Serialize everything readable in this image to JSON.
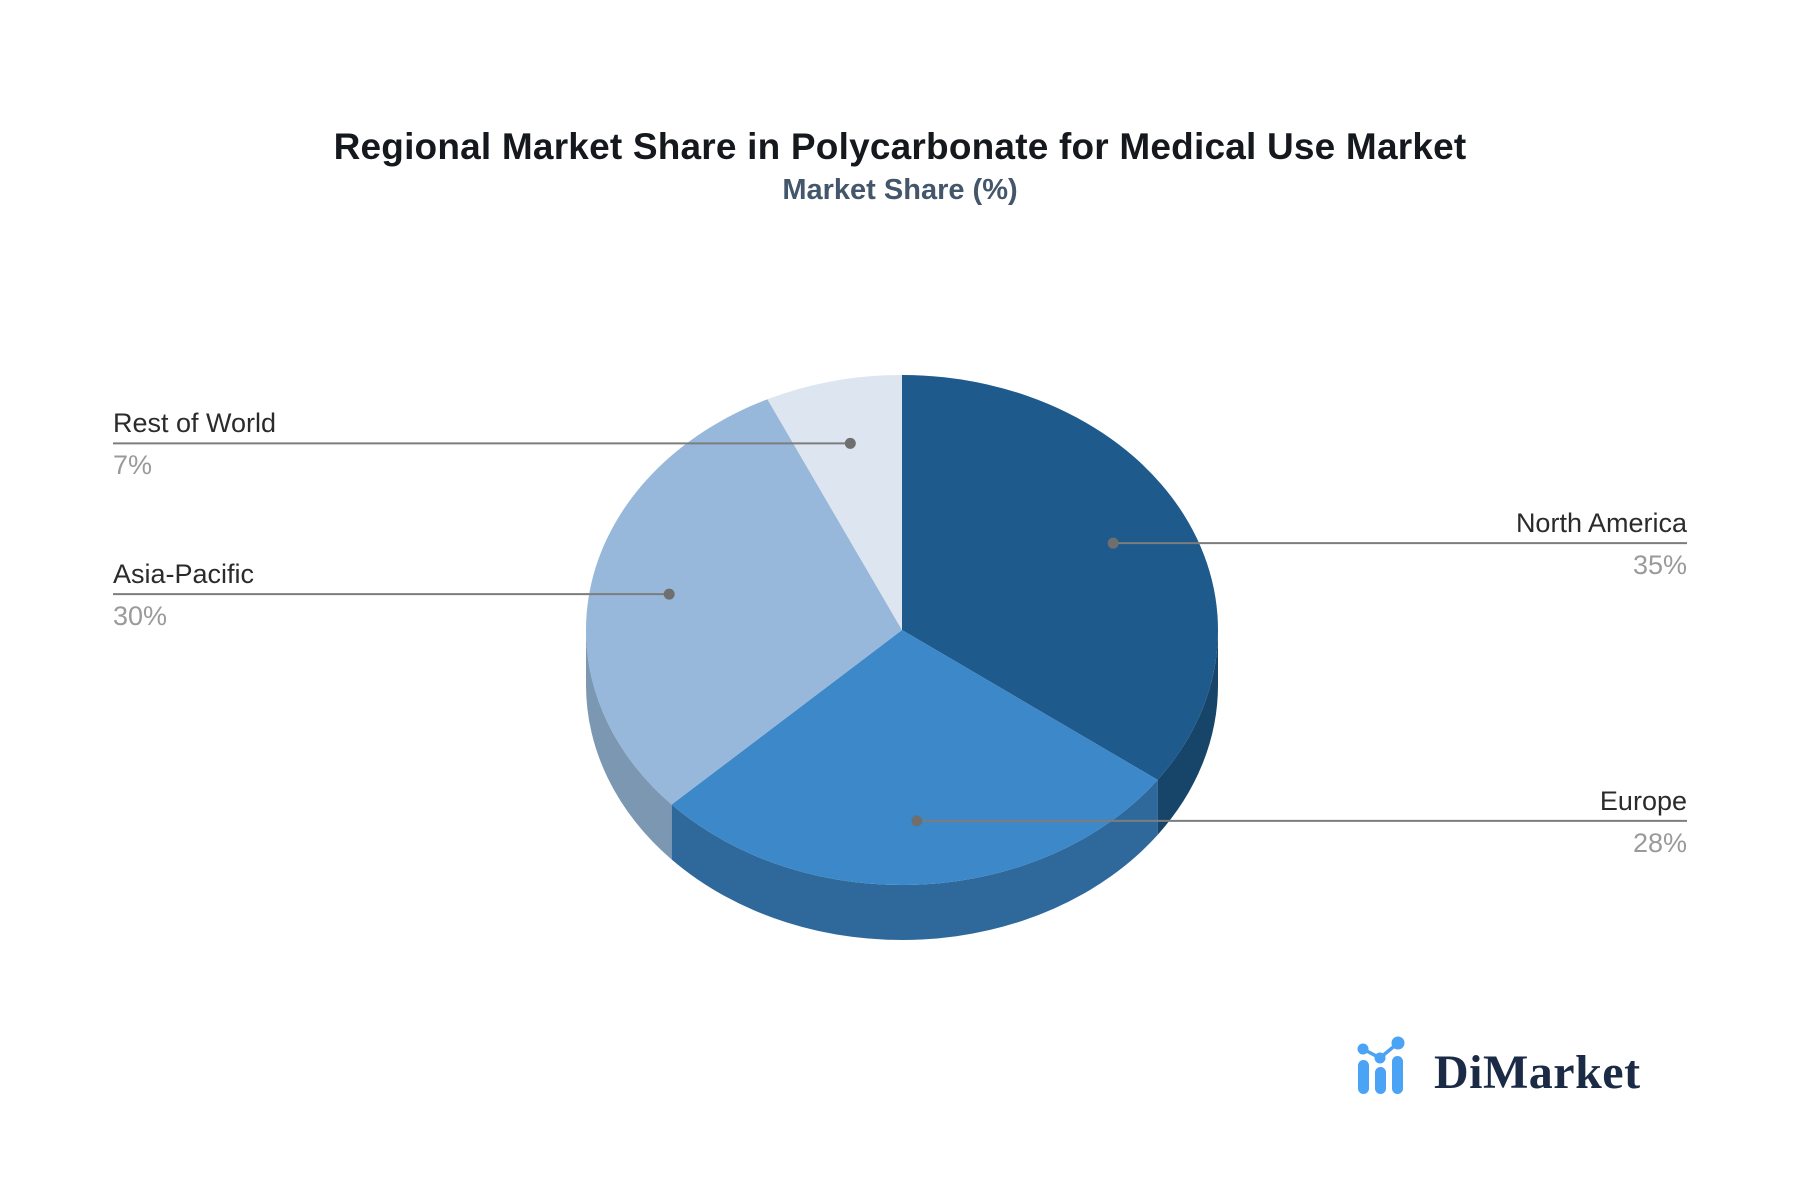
{
  "chart_data": {
    "type": "pie",
    "title": "Regional Market Share in Polycarbonate for Medical Use Market",
    "subtitle": "Market Share (%)",
    "unit": "%",
    "start_angle_deg": 0,
    "direction": "clockwise",
    "style": "3d",
    "legend_position": "none",
    "series": [
      {
        "name": "North America",
        "value": 35,
        "display": "35%",
        "color": "#1E5A8C",
        "side_color": "#164569",
        "label_side": "right"
      },
      {
        "name": "Europe",
        "value": 28,
        "display": "28%",
        "color": "#3D88C9",
        "side_color": "#2F699C",
        "label_side": "right"
      },
      {
        "name": "Asia-Pacific",
        "value": 30,
        "display": "30%",
        "color": "#97B8DA",
        "side_color": "#7B97B2",
        "label_side": "left"
      },
      {
        "name": "Rest of World",
        "value": 7,
        "display": "7%",
        "color": "#DDE5F1",
        "side_color": "#B8C6D8",
        "label_side": "left"
      }
    ],
    "label_style": {
      "name_color": "#2b2b2b",
      "value_color": "#9a9a9a",
      "connector_color": "#7d7d7d",
      "dot_color": "#6f6f6f"
    }
  },
  "brand": {
    "name": "DiMarket",
    "accent_color": "#4BA3F5",
    "text_color": "#1B2A45"
  }
}
